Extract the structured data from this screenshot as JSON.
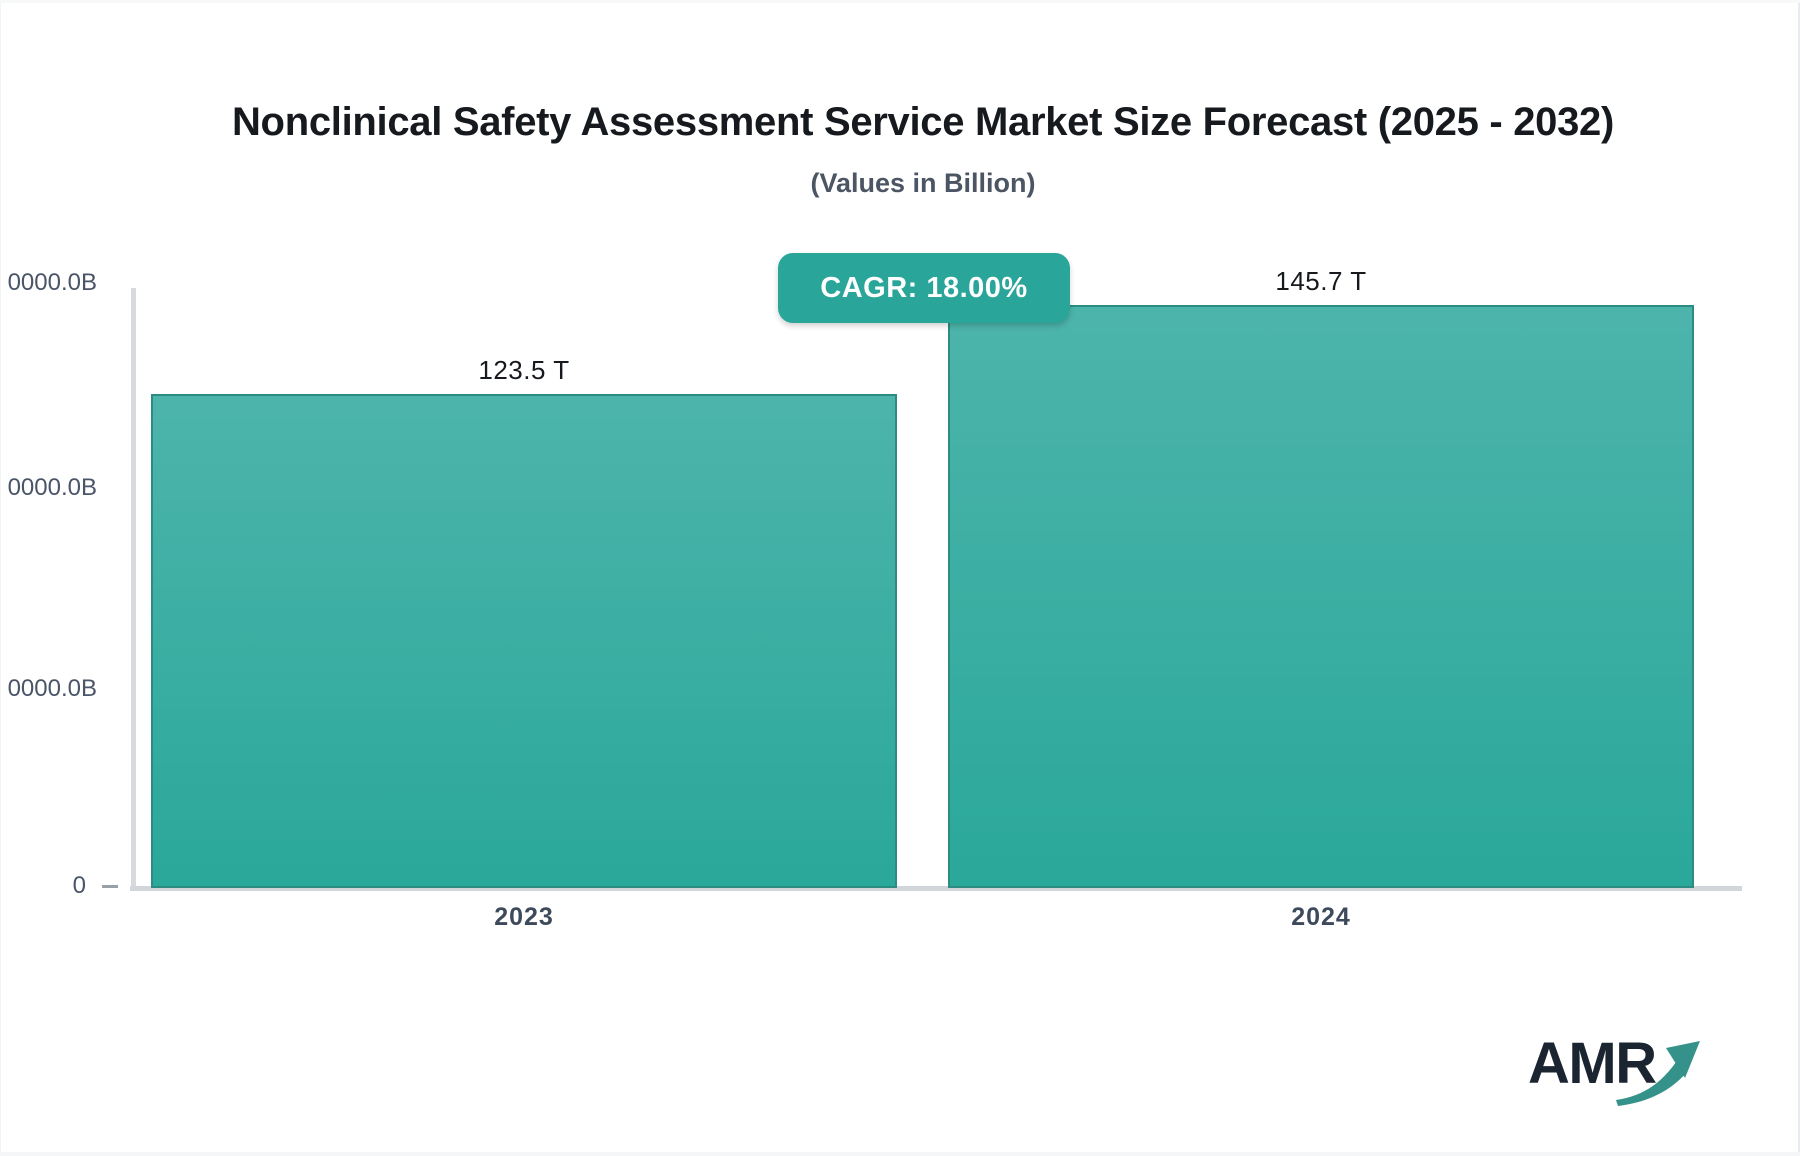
{
  "header": {
    "title": "Nonclinical Safety Assessment Service Market Size Forecast (2025 - 2032)",
    "subtitle": "(Values in Billion)"
  },
  "cagr_badge": {
    "label": "CAGR: 18.00%"
  },
  "chart_data": {
    "type": "bar",
    "title": "Nonclinical Safety Assessment Service Market Size Forecast (2025 - 2032)",
    "subtitle": "(Values in Billion)",
    "categories": [
      "2023",
      "2024"
    ],
    "values": [
      123.5,
      145.7
    ],
    "unit": "T",
    "bar_labels": [
      "123.5 T",
      "145.7 T"
    ],
    "cagr_percent": 18.0,
    "y_axis": {
      "tick_labels_visible": [
        "0000.0B",
        "0000.0B",
        "0000.0B",
        "0"
      ],
      "ylim_trillions": [
        0,
        150
      ],
      "grid": false
    },
    "legend": "none",
    "colors": {
      "bar_top": "#4db4ab",
      "bar_bottom": "#2aa89a",
      "bar_border": "#2d8c81",
      "badge_bg": "#29a59a",
      "axis_line": "#d4d7db",
      "tick_text": "#4a5568",
      "category_text": "#3d4a5c",
      "value_text": "#16191d",
      "logo_navy": "#1b2532",
      "logo_teal": "#35928b"
    }
  },
  "logo": {
    "text": "AMR"
  }
}
